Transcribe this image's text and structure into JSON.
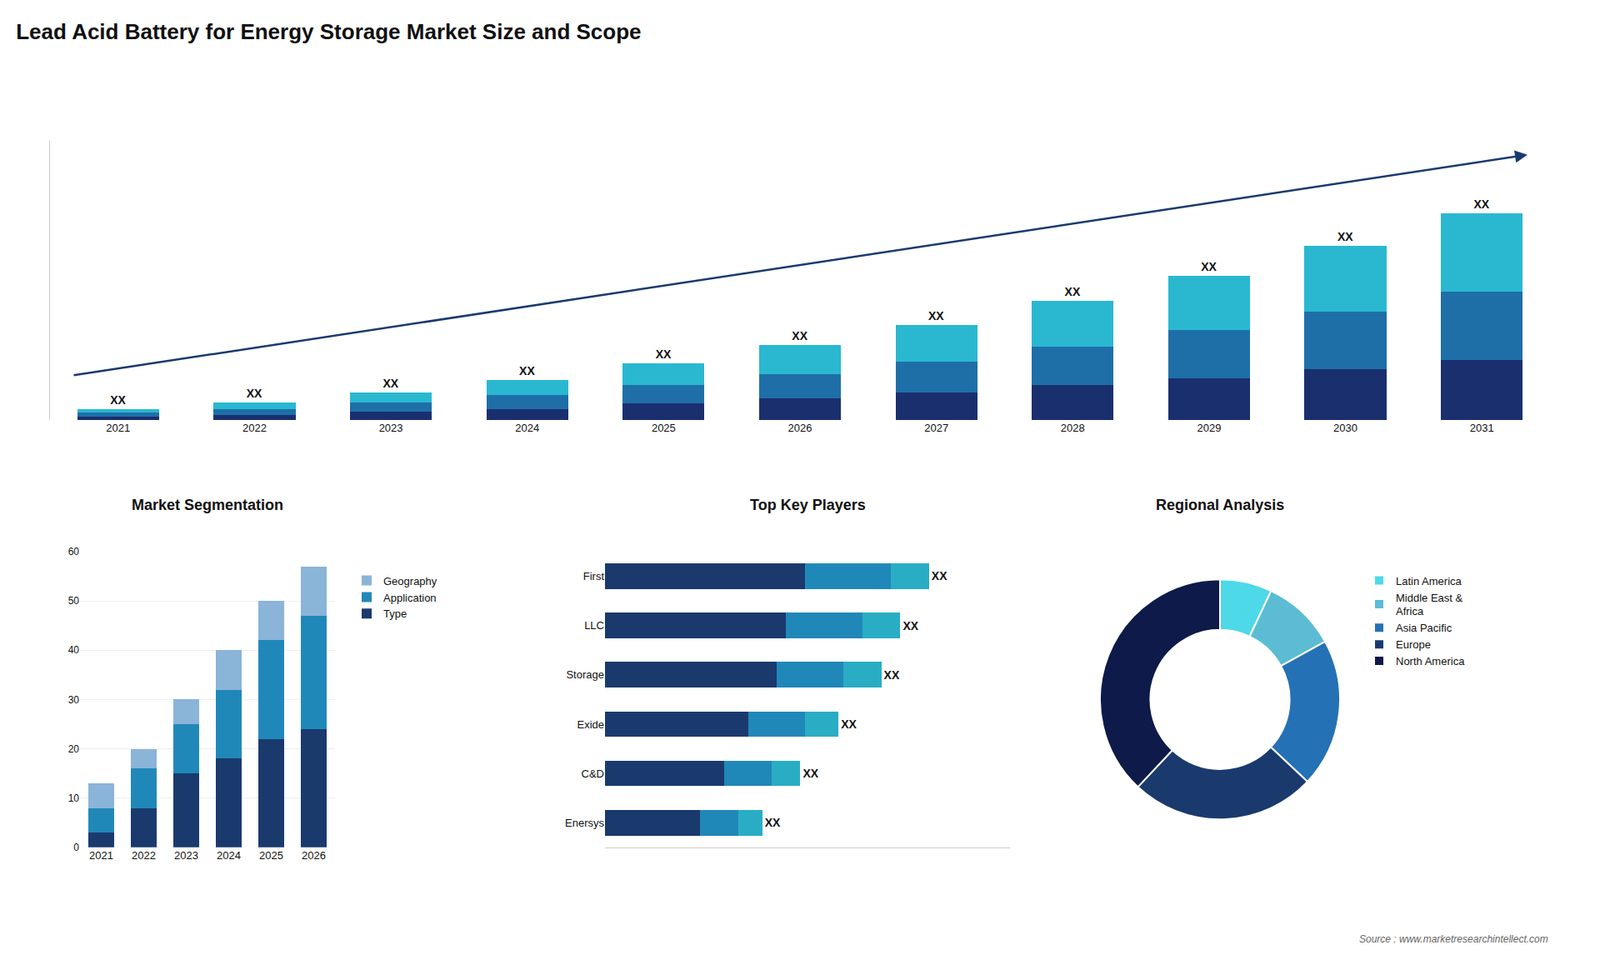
{
  "title": "Lead Acid Battery for Energy Storage Market Size and Scope",
  "annotations": [
    "Source : www.marketresearchintellect.com"
  ],
  "chart_data": [
    {
      "type": "bar",
      "stacked": true,
      "categories": [
        "2021",
        "2022",
        "2023",
        "2024",
        "2025",
        "2026",
        "2027",
        "2028",
        "2029",
        "2030",
        "2031"
      ],
      "series": [
        {
          "color": "#1a2f6e",
          "values": [
            2,
            3,
            4.5,
            6,
            9,
            12,
            15,
            19,
            23,
            28,
            33
          ]
        },
        {
          "color": "#1e6fa8",
          "values": [
            2,
            3,
            5,
            7.5,
            10,
            13,
            17,
            21,
            26,
            31,
            37
          ]
        },
        {
          "color": "#29b8d0",
          "values": [
            2,
            3.5,
            5.5,
            8.5,
            12,
            16,
            20,
            25,
            30,
            36,
            43
          ],
          "value_labels": [
            "XX",
            "XX",
            "XX",
            "XX",
            "XX",
            "XX",
            "XX",
            "XX",
            "XX",
            "XX",
            "XX"
          ]
        }
      ],
      "ylim": [
        0,
        152.55
      ],
      "tick_labels": "x",
      "grid": false
    },
    {
      "type": "bar",
      "title": "Market Segmentation",
      "stacked": true,
      "categories": [
        "2021",
        "2022",
        "2023",
        "2024",
        "2025",
        "2026"
      ],
      "series": [
        {
          "name": "Type",
          "color": "#1a3a6e",
          "values": [
            3,
            8,
            15,
            18,
            22,
            24
          ]
        },
        {
          "name": "Application",
          "color": "#2088b8",
          "values": [
            5,
            8,
            10,
            14,
            20,
            23
          ]
        },
        {
          "name": "Geography",
          "color": "#8ab4d8",
          "values": [
            5,
            4,
            5,
            8,
            8,
            10
          ]
        }
      ],
      "ylim": [
        0,
        60
      ],
      "yticks": [
        0,
        10,
        20,
        30,
        40,
        50,
        60
      ],
      "grid": true,
      "legend": "right"
    },
    {
      "type": "bar",
      "title": "Top Key Players",
      "orientation": "horizontal",
      "stacked": true,
      "categories": [
        "First",
        "LLC",
        "Storage",
        "Exide",
        "C&D",
        "Enersys"
      ],
      "series": [
        {
          "color": "#1a3a6e",
          "values": [
            0.42,
            0.38,
            0.36,
            0.3,
            0.25,
            0.2
          ]
        },
        {
          "color": "#2088b8",
          "values": [
            0.18,
            0.16,
            0.14,
            0.12,
            0.1,
            0.08
          ]
        },
        {
          "color": "#29adc4",
          "values": [
            0.08,
            0.08,
            0.08,
            0.07,
            0.06,
            0.05
          ],
          "value_labels": [
            "XX",
            "XX",
            "XX",
            "XX",
            "XX",
            "XX"
          ]
        }
      ],
      "xlim": [
        0,
        0.85
      ],
      "tick_labels": "y",
      "grid": false
    },
    {
      "type": "pie",
      "title": "Regional Analysis",
      "categories": [
        "Latin America",
        "Middle East &\nAfrica",
        "Asia Pacific",
        "Europe",
        "North America"
      ],
      "values": [
        7,
        10,
        20,
        25,
        38
      ],
      "colors": [
        "#4dd9e8",
        "#5bbcd4",
        "#2571b5",
        "#1a3a6e",
        "#0d1a4a"
      ],
      "legend": "right"
    }
  ]
}
